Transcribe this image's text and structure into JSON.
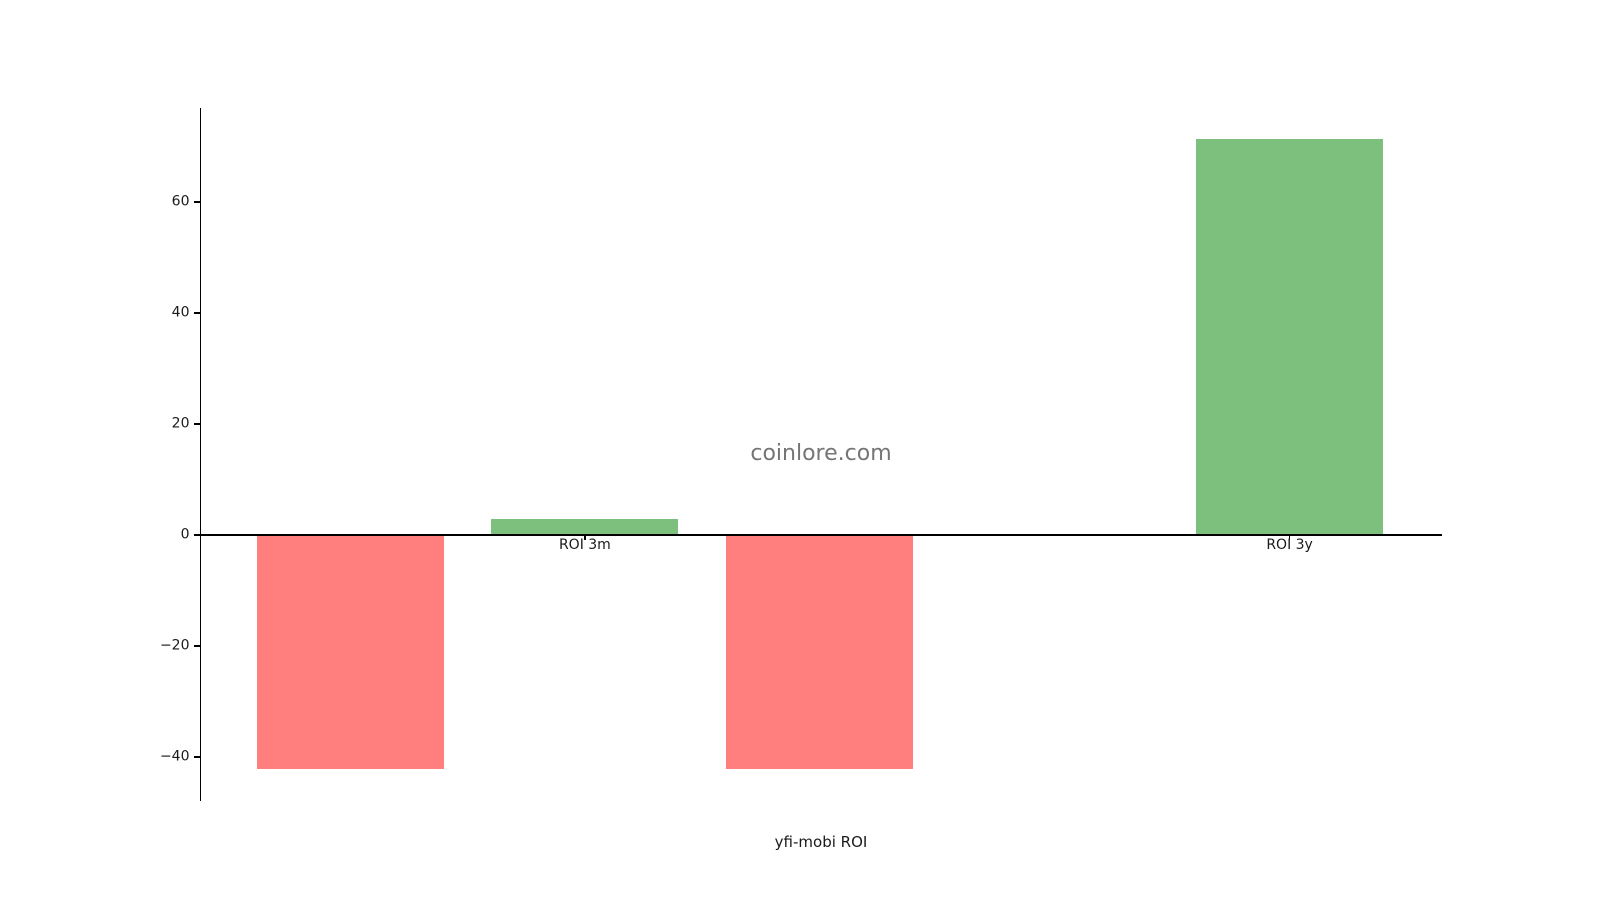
{
  "watermark": "coinlore.com",
  "colors": {
    "positive": "#7dbf7d",
    "negative": "#ff7f7f",
    "axis": "#000000",
    "text": "#1a1a1a",
    "watermark": "#757575"
  },
  "chart_data": {
    "type": "bar",
    "title": "yfi-mobi ROI",
    "categories": [
      "",
      "ROI 3m",
      "",
      "",
      "ROI 3y"
    ],
    "values": [
      -42.2,
      2.9,
      -42.2,
      0,
      71.3
    ],
    "yticks": [
      {
        "v": 60,
        "label": "60"
      },
      {
        "v": 40,
        "label": "40"
      },
      {
        "v": 20,
        "label": "20"
      },
      {
        "v": 0,
        "label": "0"
      },
      {
        "v": -20,
        "label": "−20"
      },
      {
        "v": -40,
        "label": "−40"
      }
    ],
    "ylim": [
      -47.9,
      76.9
    ],
    "xlabel": "",
    "ylabel": "",
    "grid": false,
    "legend": false,
    "bar_color_rule": "positive values green, negative values red"
  }
}
